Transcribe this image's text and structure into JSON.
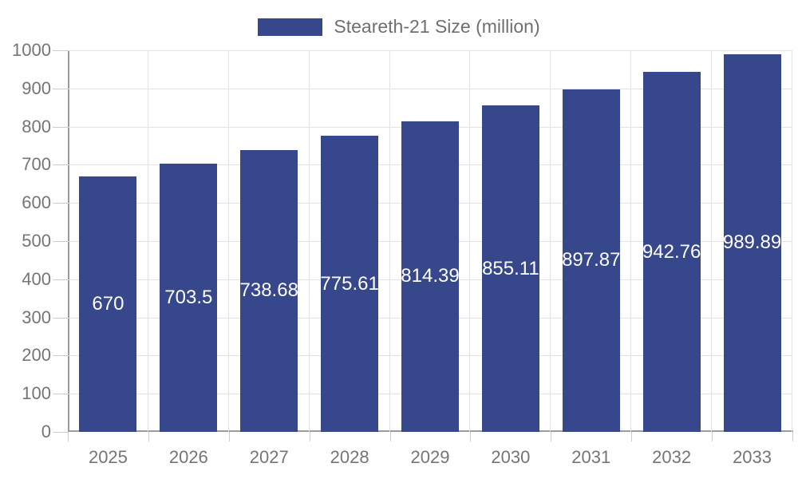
{
  "chart_data": {
    "type": "bar",
    "title": "",
    "legend": "Steareth-21 Size (million)",
    "legend_position": "top-center",
    "categories": [
      "2025",
      "2026",
      "2027",
      "2028",
      "2029",
      "2030",
      "2031",
      "2032",
      "2033"
    ],
    "series": [
      {
        "name": "Steareth-21 Size (million)",
        "values": [
          670,
          703.5,
          738.68,
          775.61,
          814.39,
          855.11,
          897.87,
          942.76,
          989.89
        ]
      }
    ],
    "value_labels": [
      "670",
      "703.5",
      "738.68",
      "775.61",
      "814.39",
      "855.11",
      "897.87",
      "942.76",
      "989.89"
    ],
    "value_label_position": "inside-center",
    "xlabel": "",
    "ylabel": "",
    "ylim": [
      0,
      1000
    ],
    "ytick_step": 100,
    "ytick_labels": [
      "0",
      "100",
      "200",
      "300",
      "400",
      "500",
      "600",
      "700",
      "800",
      "900",
      "1000"
    ],
    "grid": true
  },
  "colors": {
    "bar": "#36478B",
    "legend_text": "#6f6f6f",
    "axis_text": "#757575",
    "gridline": "#e2e2e2",
    "axis_line": "#9b9b9b",
    "tick_mark": "#cccccc",
    "value_label_text": "#ffffff",
    "background": "#ffffff"
  }
}
